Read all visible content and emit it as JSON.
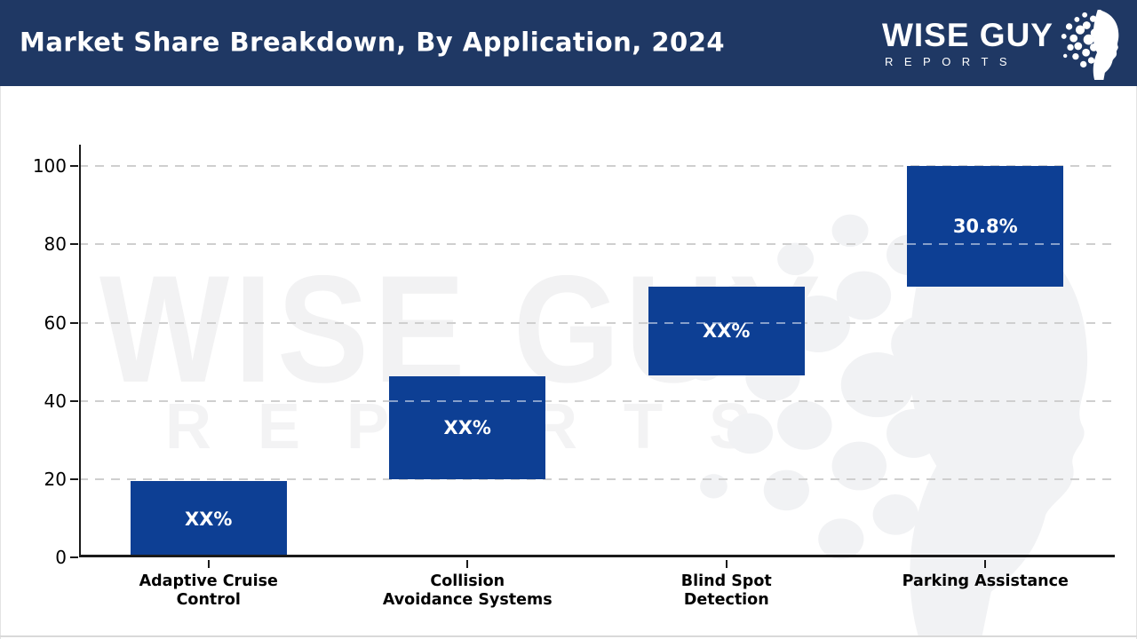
{
  "header": {
    "background": "#1f3864",
    "title": "Market Share Breakdown, By Application, 2024",
    "logo": {
      "wordmark": "WISE GUY",
      "subtext": "REPORTS"
    }
  },
  "watermark": {
    "wordmark": "WISE GUY",
    "subtext": "REPORTS"
  },
  "chart_data": {
    "type": "bar",
    "subtype": "waterfall",
    "title": "Market Share Breakdown, By Application, 2024",
    "categories": [
      "Adaptive Cruise Control",
      "Collision Avoidance Systems",
      "Blind Spot Detection",
      "Parking Assistance"
    ],
    "category_label_lines": [
      [
        "Adaptive Cruise",
        "Control"
      ],
      [
        "Collision",
        "Avoidance Systems"
      ],
      [
        "Blind Spot",
        "Detection"
      ],
      [
        "Parking Assistance"
      ]
    ],
    "segments": [
      {
        "category": "Adaptive Cruise Control",
        "start": 0,
        "end": 19.6,
        "value_label": "XX%"
      },
      {
        "category": "Collision Avoidance Systems",
        "start": 20,
        "end": 46.3,
        "value_label": "XX%"
      },
      {
        "category": "Blind Spot Detection",
        "start": 46.6,
        "end": 69.2,
        "value_label": "XX%"
      },
      {
        "category": "Parking Assistance",
        "start": 69.2,
        "end": 100,
        "value_label": "30.8%"
      }
    ],
    "xlabel": "",
    "ylabel": "",
    "ylim": [
      0,
      105.5
    ],
    "yticks": [
      0,
      20,
      40,
      60,
      80,
      100
    ],
    "grid": "horizontal-dashed",
    "legend": "none",
    "colors": {
      "bar": "#0d3f94",
      "bar_label": "#ffffff",
      "axis": "#1a1a1a",
      "grid": "#cfcfcf",
      "grid_on_bar": "rgba(255,255,255,0.5)",
      "tick_label": "#000000"
    }
  }
}
